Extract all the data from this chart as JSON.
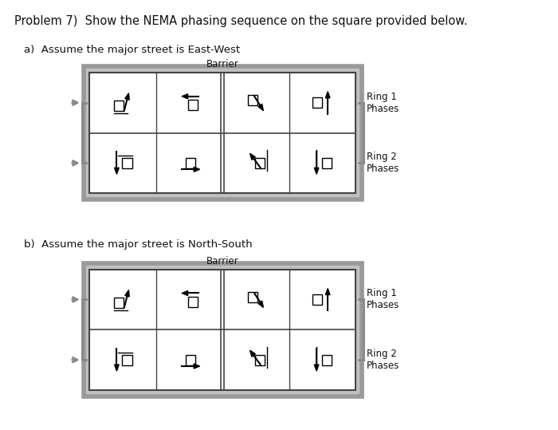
{
  "title": "Problem 7)  Show the NEMA phasing sequence on the square provided below.",
  "subtitle_a": "a)  Assume the major street is East-West",
  "subtitle_b": "b)  Assume the major street is North-South",
  "barrier_label": "Barrier",
  "ring1_label": "Ring 1\nPhases",
  "ring2_label": "Ring 2\nPhases",
  "bg_color": "#ffffff",
  "text_color": "#111111",
  "font_size_title": 10.5,
  "font_size_sub": 9.5,
  "font_size_ring": 8.5,
  "font_size_barrier": 8.5
}
